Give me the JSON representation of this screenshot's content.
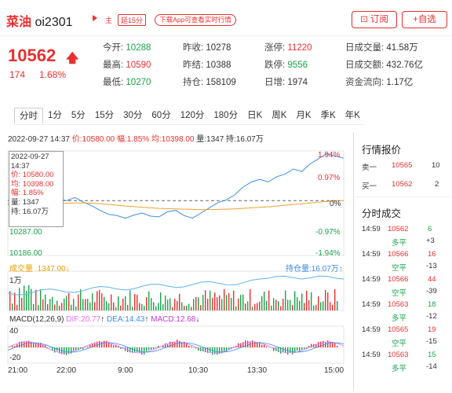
{
  "header": {
    "name": "菜油",
    "code": "oi2301",
    "tag_main": "主",
    "tag_delay": "延15分",
    "download_label": "下载App可查看实时行情",
    "subscribe_label": "订阅",
    "favorite_label": "+自选"
  },
  "price": {
    "last": "10562",
    "change": "174",
    "change_pct": "1.68%"
  },
  "quote": {
    "open": {
      "label": "今开:",
      "value": "10288"
    },
    "high": {
      "label": "最高:",
      "value": "10590"
    },
    "low": {
      "label": "最低:",
      "value": "10270"
    },
    "prev_close": {
      "label": "昨收:",
      "value": "10278"
    },
    "prev_settle": {
      "label": "昨结:",
      "value": "10388"
    },
    "open_interest": {
      "label": "持仓:",
      "value": "158109"
    },
    "limit_up": {
      "label": "涨停:",
      "value": "11220"
    },
    "limit_down": {
      "label": "跌停:",
      "value": "9556"
    },
    "daily_add": {
      "label": "日增:",
      "value": "1974"
    },
    "volume": {
      "label": "日成交量:",
      "value": "41.58万"
    },
    "turnover": {
      "label": "日成交额:",
      "value": "432.76亿"
    },
    "fund_flow": {
      "label": "资金流向:",
      "value": "1.17亿"
    }
  },
  "tabs": [
    "分时",
    "1分",
    "5分",
    "15分",
    "30分",
    "60分",
    "120分",
    "180分",
    "日K",
    "周K",
    "月K",
    "季K",
    "年K"
  ],
  "info_line": {
    "datetime": "2022-09-27 14:37",
    "price": "价:10580.00",
    "amp": "幅:1.85%",
    "avg": "均:10398.00",
    "vol": "量:1347",
    "hold": "持:16.07万"
  },
  "tooltip": {
    "date": "2022-09-27",
    "time": "14:37",
    "price": "价: 10580.00",
    "avg": "均: 10398.00",
    "amp": "幅: 1.85%",
    "vol": "量: 1347",
    "hold": "持: 16.07万"
  },
  "chart_data": {
    "type": "line",
    "title": "",
    "y_left_ticks": [
      "10287.00",
      "10186.00"
    ],
    "y_right_ticks": [
      "1.94%",
      "0.97%",
      "0%",
      "-0.97%",
      "-1.94%"
    ],
    "x_ticks": [
      "21:00",
      "22:00",
      "9:00",
      "10:30",
      "13:30",
      "15:00"
    ],
    "ylim": [
      10186,
      10590
    ],
    "series": [
      {
        "name": "价",
        "color": "#3a8ee6",
        "values": [
          10384,
          10370,
          10395,
          10400,
          10380,
          10388,
          10405,
          10398,
          10410,
          10392,
          10378,
          10360,
          10345,
          10340,
          10330,
          10342,
          10350,
          10338,
          10335,
          10355,
          10360,
          10340,
          10330,
          10350,
          10370,
          10390,
          10400,
          10420,
          10450,
          10470,
          10480,
          10470,
          10490,
          10500,
          10520,
          10510,
          10540,
          10560,
          10580,
          10570,
          10562
        ]
      },
      {
        "name": "均",
        "color": "#f0a030",
        "values": [
          10386,
          10384,
          10385,
          10386,
          10386,
          10386,
          10387,
          10388,
          10389,
          10389,
          10388,
          10386,
          10383,
          10380,
          10377,
          10375,
          10372,
          10370,
          10368,
          10367,
          10366,
          10365,
          10364,
          10363,
          10363,
          10364,
          10365,
          10366,
          10368,
          10370,
          10372,
          10374,
          10377,
          10380,
          10383,
          10386,
          10389,
          10392,
          10395,
          10397,
          10398
        ]
      }
    ],
    "volume_label": "成交量",
    "volume_value": "1347.00",
    "volume_unit_tick": "1万",
    "hold_label": "持仓量",
    "hold_value": "16.07万",
    "macd_label": "MACD(12,26,9)",
    "dif_label": "DIF:20.77",
    "dea_label": "DEA:14.43",
    "macd_value_label": "MACD:12.68",
    "macd_ticks": [
      "40",
      "-20"
    ]
  },
  "right_panel": {
    "quote_title": "行情报价",
    "sell1": {
      "label": "卖一",
      "price": "10565",
      "qty": "10"
    },
    "buy1": {
      "label": "买一",
      "price": "10562",
      "qty": "2"
    },
    "trades_title": "分时成交",
    "trades": [
      {
        "time": "14:59",
        "price": "10562",
        "vol": "6",
        "type": "多平",
        "oi": "+3"
      },
      {
        "time": "14:59",
        "price": "10566",
        "vol": "16",
        "type": "空平",
        "oi": "-13"
      },
      {
        "time": "14:59",
        "price": "10566",
        "vol": "44",
        "type": "空平",
        "oi": "-39"
      },
      {
        "time": "14:59",
        "price": "10563",
        "vol": "18",
        "type": "多平",
        "oi": "-12"
      },
      {
        "time": "14:59",
        "price": "10565",
        "vol": "19",
        "type": "空平",
        "oi": "-15"
      },
      {
        "time": "14:59",
        "price": "10563",
        "vol": "15",
        "type": "多平",
        "oi": "-14"
      }
    ]
  },
  "colors": {
    "up": "#e93030",
    "down": "#1aa34a",
    "price_line": "#3a8ee6",
    "avg_line": "#f0a030"
  }
}
